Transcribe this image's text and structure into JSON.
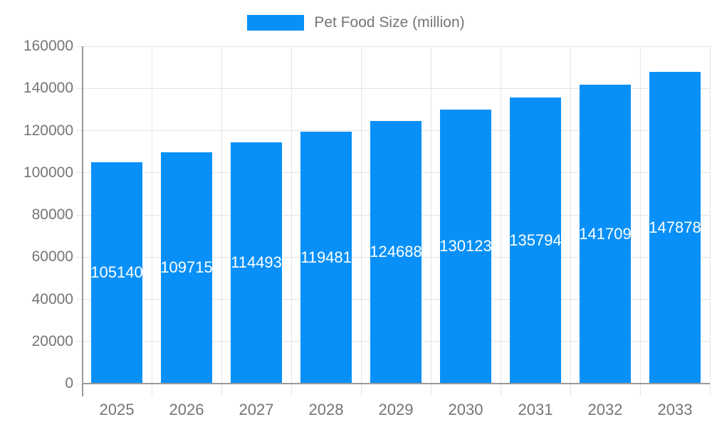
{
  "legend": {
    "label": "Pet Food Size (million)"
  },
  "colors": {
    "bar": "#0890f8",
    "grid": "#e4e4e4",
    "axis": "#9a9a9a",
    "tick_text": "#757575",
    "bar_label_text": "#ffffff",
    "background": "#ffffff"
  },
  "chart_data": {
    "type": "bar",
    "title": "Pet Food Size (million)",
    "legend_entries": [
      "Pet Food Size (million)"
    ],
    "legend_position": "top",
    "categories": [
      "2025",
      "2026",
      "2027",
      "2028",
      "2029",
      "2030",
      "2031",
      "2032",
      "2033"
    ],
    "series": [
      {
        "name": "Pet Food Size (million)",
        "values": [
          105140,
          109715,
          114493,
          119481,
          124688,
          130123,
          135794,
          141709,
          147878
        ]
      }
    ],
    "data_labels_visible": true,
    "xlabel": "",
    "ylabel": "",
    "ylim": [
      0,
      160000
    ],
    "yticks": [
      0,
      20000,
      40000,
      60000,
      80000,
      100000,
      120000,
      140000,
      160000
    ],
    "grid": true
  }
}
